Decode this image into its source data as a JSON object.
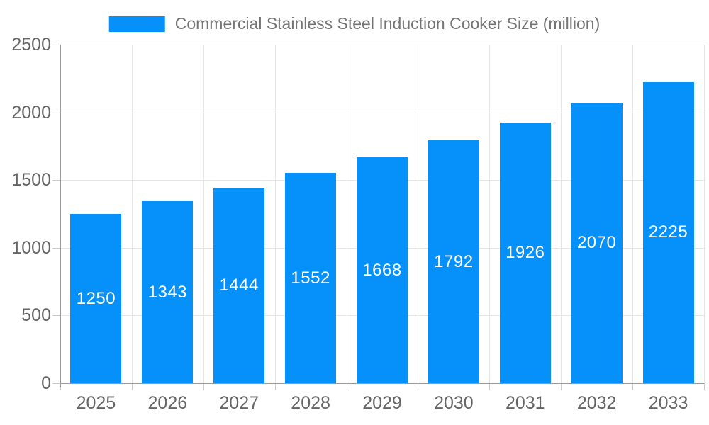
{
  "chart_data": {
    "type": "bar",
    "title": "Commercial Stainless Steel Induction Cooker Size (million)",
    "categories": [
      "2025",
      "2026",
      "2027",
      "2028",
      "2029",
      "2030",
      "2031",
      "2032",
      "2033"
    ],
    "values": [
      1250,
      1343,
      1444,
      1552,
      1668,
      1792,
      1926,
      2070,
      2225
    ],
    "y_ticks": [
      0,
      500,
      1000,
      1500,
      2000,
      2500
    ],
    "ylim": [
      0,
      2500
    ],
    "xlabel": "",
    "ylabel": "",
    "grid": true,
    "legend_position": "top",
    "bar_label_position": "inside-center"
  },
  "colors": {
    "bar": "#0690fa",
    "bar_label": "#ffffff",
    "axis_line": "#999999",
    "gridline": "#e6e6e6",
    "tick": "#cccccc",
    "axis_text": "#666666",
    "title_text": "#757575",
    "background": "#ffffff"
  }
}
